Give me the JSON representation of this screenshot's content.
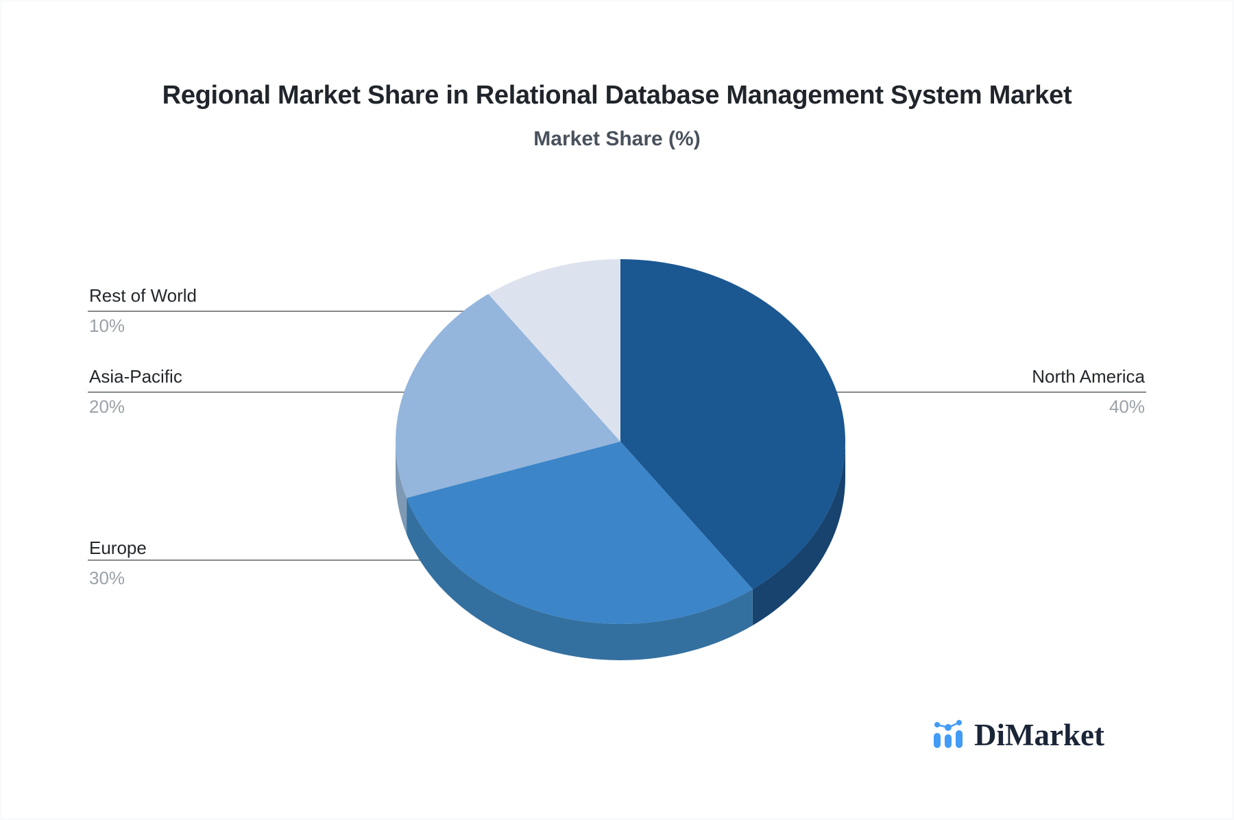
{
  "chart_data": {
    "type": "pie",
    "title": "Regional Market Share in Relational Database Management System Market",
    "subtitle": "Market Share (%)",
    "unit": "%",
    "effect": "3d-depth",
    "direction": "clockwise",
    "start_angle_deg": 0,
    "legend": "none",
    "label_style": "callout-leader-lines",
    "slices": [
      {
        "label": "North America",
        "value": 40,
        "display": "40%",
        "color": "#1b5791",
        "side_color": "#17436e",
        "label_side": "right"
      },
      {
        "label": "Europe",
        "value": 30,
        "display": "30%",
        "color": "#3b85c8",
        "side_color": "#34709f",
        "label_side": "left"
      },
      {
        "label": "Asia-Pacific",
        "value": 20,
        "display": "20%",
        "color": "#94b5dc",
        "side_color": "#7f99b4",
        "label_side": "left"
      },
      {
        "label": "Rest of World",
        "value": 10,
        "display": "10%",
        "color": "#dce3ee",
        "side_color": "#c3cfdf",
        "label_side": "left"
      }
    ]
  },
  "labels_color": "#23272b",
  "percent_color": "#9aa1a8",
  "leader_line_color": "#85898d",
  "leader_dot_color": "#6f7377",
  "branding": {
    "logo_text": "DiMarket",
    "logo_icon": "bar-line-chart-icon",
    "icon_color": "#429bf4",
    "text_color": "#1b2538"
  }
}
